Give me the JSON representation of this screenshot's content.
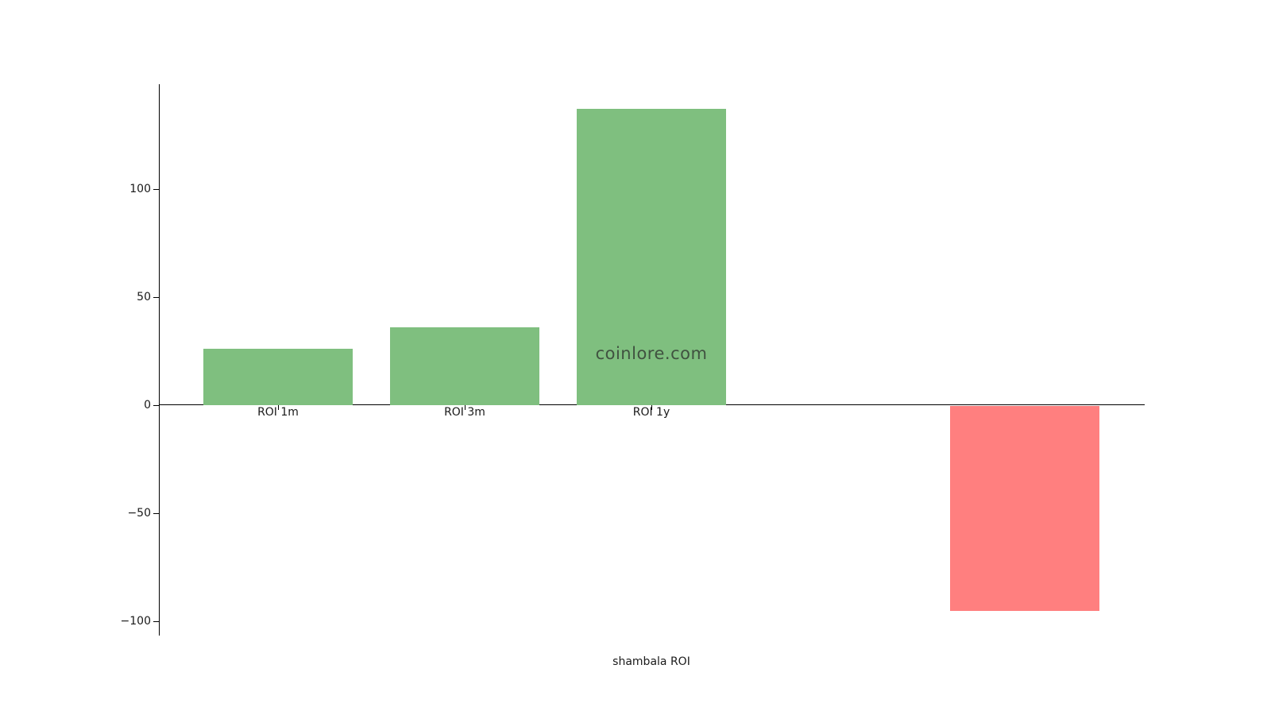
{
  "watermark": "coinlore.com",
  "chart_data": {
    "type": "bar",
    "title": "",
    "xlabel": "shambala ROI",
    "ylabel": "",
    "categories": [
      "ROI 1m",
      "ROI 3m",
      "ROI 1y",
      "",
      ""
    ],
    "values": [
      26,
      36,
      137,
      0,
      -95
    ],
    "yticks": [
      100,
      50,
      0,
      -50,
      -100
    ],
    "ylim": [
      -107,
      149
    ],
    "grid": false,
    "legend": "none",
    "colors": {
      "positive_bar": "#7fbf7f",
      "negative_bar": "#ff7f7f",
      "axis": "#000000",
      "tick_text": "#1a1a1a",
      "watermark_text": "rgba(40,40,40,0.72)"
    }
  }
}
